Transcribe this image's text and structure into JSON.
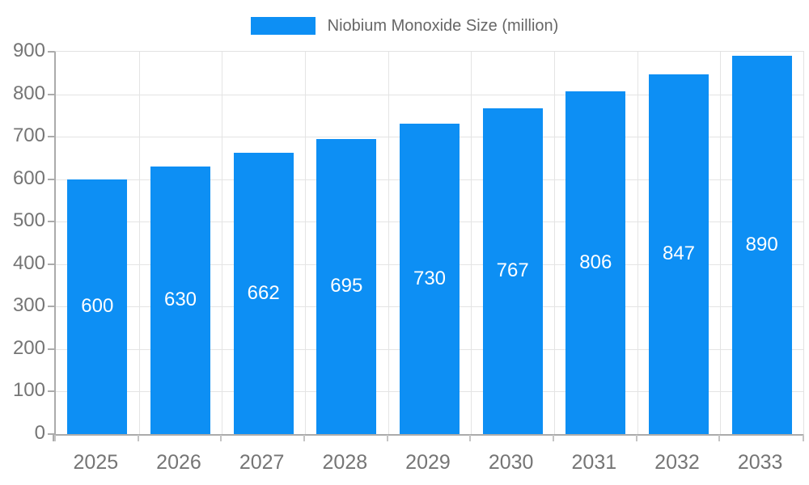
{
  "legend": {
    "label": "Niobium Monoxide Size (million)"
  },
  "colors": {
    "bar": "#0d8ff4",
    "bar_label": "#ffffff",
    "axis": "#ababab",
    "grid": "#e4e4e4",
    "tick_label": "#757575",
    "legend_text": "#666666",
    "background": "#ffffff"
  },
  "chart_data": {
    "type": "bar",
    "title": "",
    "series_name": "Niobium Monoxide Size (million)",
    "categories": [
      "2025",
      "2026",
      "2027",
      "2028",
      "2029",
      "2030",
      "2031",
      "2032",
      "2033"
    ],
    "values": [
      600,
      630,
      662,
      695,
      730,
      767,
      806,
      847,
      890
    ],
    "xlabel": "",
    "ylabel": "",
    "ylim": [
      0,
      900
    ],
    "ytick_step": 100,
    "grid": true,
    "legend_position": "top",
    "bar_labels_shown": true,
    "bar_label_position": "center"
  }
}
